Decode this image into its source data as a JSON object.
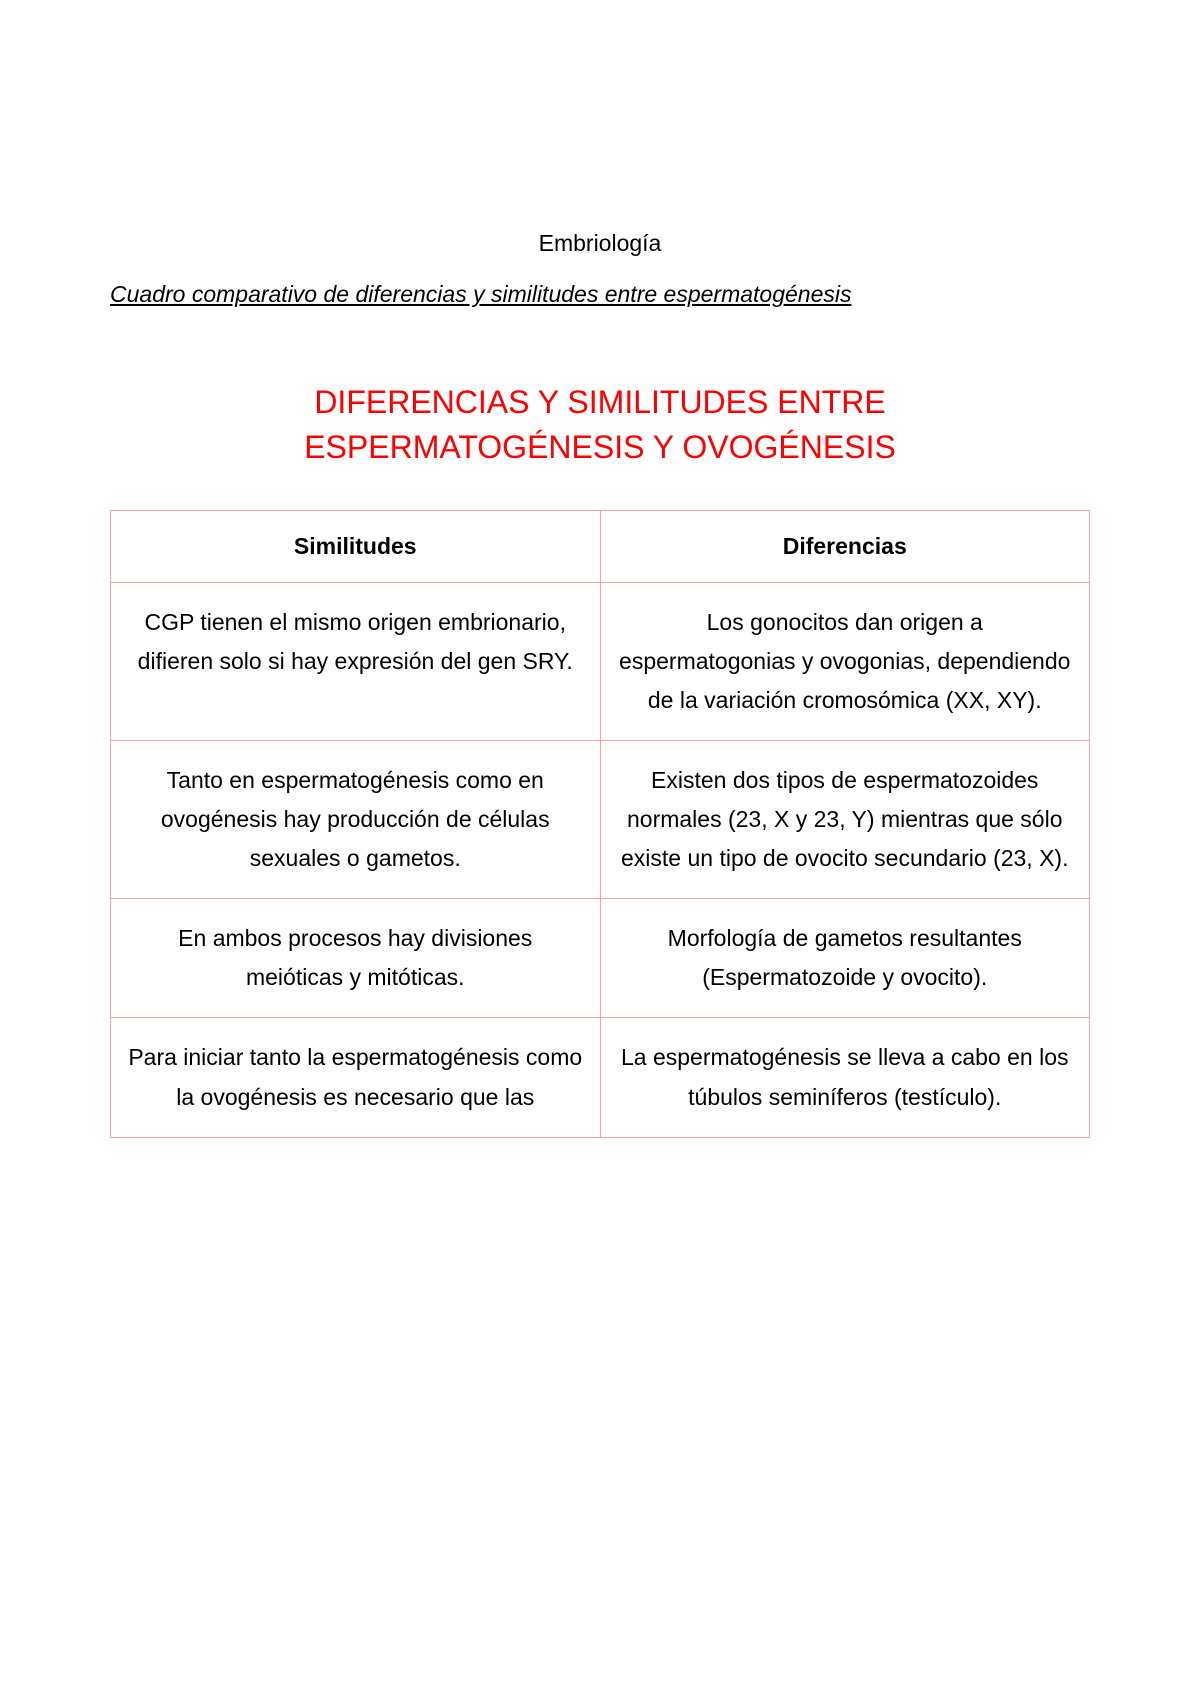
{
  "subject": "Embriología",
  "subtitle": "Cuadro comparativo de diferencias y similitudes entre espermatogénesis",
  "main_title": "DIFERENCIAS Y SIMILITUDES ENTRE ESPERMATOGÉNESIS Y OVOGÉNESIS",
  "table": {
    "columns": [
      "Similitudes",
      "Diferencias"
    ],
    "rows": [
      [
        "CGP tienen el mismo origen embrionario, difieren solo si hay expresión del gen SRY.",
        "Los gonocitos dan origen a espermatogonias y ovogonias, dependiendo de la variación cromosómica (XX, XY)."
      ],
      [
        "Tanto en espermatogénesis como en ovogénesis hay producción de células sexuales o gametos.",
        "Existen dos tipos de espermatozoides normales (23, X y 23, Y) mientras que sólo existe un tipo de ovocito secundario (23, X)."
      ],
      [
        "En ambos procesos hay divisiones meióticas y mitóticas.",
        "Morfología de gametos resultantes (Espermatozoide y ovocito)."
      ],
      [
        "Para iniciar tanto la espermatogénesis como la ovogénesis es necesario que las",
        "La espermatogénesis se lleva a cabo en los túbulos seminíferos (testículo)."
      ]
    ],
    "border_color": "#f4a6a0",
    "title_color": "#ff0000",
    "background_color": "#ffffff",
    "text_color": "#000000",
    "title_fontsize": 32,
    "body_fontsize": 23
  }
}
